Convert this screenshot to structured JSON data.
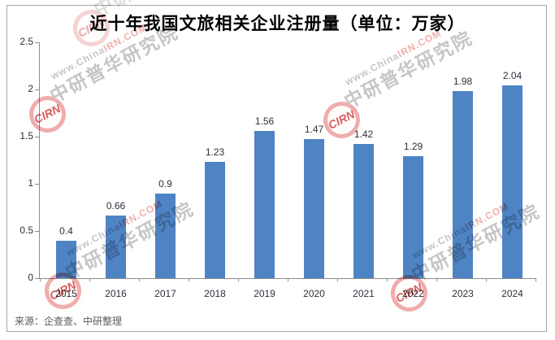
{
  "page": {
    "background_color": "#ffffff",
    "frame_border_color": "#a6a6a6"
  },
  "title": "近十年我国文旅相关企业注册量（单位：万家）",
  "source_note": "来源：企查查、中研整理",
  "watermark": {
    "logo_text": "CIRN",
    "line1_gray": "www.China",
    "line1_pink": "IRN.COM",
    "line2": "中研普华研究院",
    "gray_color": "#c6c6c6",
    "pink_color": "#f0aeae",
    "logo_text_color": "#d65f5f"
  },
  "chart_data": {
    "type": "bar",
    "title": "近十年我国文旅相关企业注册量（单位：万家）",
    "unit_label": "万家",
    "categories": [
      "2015",
      "2016",
      "2017",
      "2018",
      "2019",
      "2020",
      "2021",
      "2022",
      "2023",
      "2024"
    ],
    "values": [
      0.4,
      0.66,
      0.9,
      1.23,
      1.56,
      1.47,
      1.42,
      1.29,
      1.98,
      2.04
    ],
    "value_labels": [
      "0.4",
      "0.66",
      "0.9",
      "1.23",
      "1.56",
      "1.47",
      "1.42",
      "1.29",
      "1.98",
      "2.04"
    ],
    "xlabel": "",
    "ylabel": "",
    "ylim": [
      0,
      2.5
    ],
    "ytick_step": 0.5,
    "ytick_labels": [
      "0",
      "0.5",
      "1",
      "1.5",
      "2",
      "2.5"
    ],
    "grid": false,
    "legend": "none",
    "bar_color": "#4e84c4",
    "axis_color": "#8e8e8e",
    "label_color": "#332d3e"
  }
}
